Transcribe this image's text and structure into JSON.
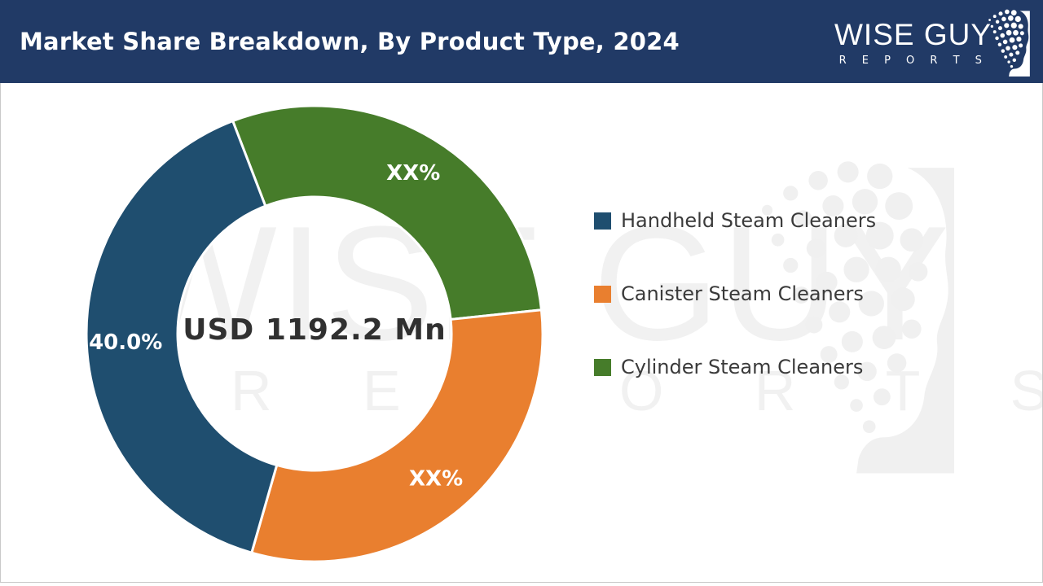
{
  "header": {
    "title": "Market Share Breakdown, By Product Type, 2024",
    "logo": {
      "wordmark": "WISE GUY",
      "subtext": "R E P O R T S"
    }
  },
  "watermark": {
    "wordmark": "WISE GUY",
    "subtext": "R E P O R T S"
  },
  "chart_data": {
    "type": "pie",
    "subtype": "donut",
    "title": "Market Share Breakdown, By Product Type, 2024",
    "center_label": "USD 1192.2 Mn",
    "total_value_mn": 1192.2,
    "legend_position": "right",
    "segments": [
      {
        "name": "Cylinder Steam Cleaners",
        "display_label": "XX%",
        "value_pct_est": 29.2,
        "start_deg": -21,
        "end_deg": 84,
        "color": "#467C2A"
      },
      {
        "name": "Canister Steam Cleaners",
        "display_label": "XX%",
        "value_pct_est": 31.1,
        "start_deg": 84,
        "end_deg": 196,
        "color": "#E97F2F"
      },
      {
        "name": "Handheld Steam Cleaners",
        "display_label": "40.0%",
        "value_pct_est": 39.7,
        "start_deg": 196,
        "end_deg": 339,
        "color": "#1F4E6F"
      }
    ],
    "legend_items": [
      {
        "label": "Handheld Steam Cleaners",
        "color": "#1F4E6F"
      },
      {
        "label": "Canister Steam Cleaners",
        "color": "#E97F2F"
      },
      {
        "label": "Cylinder Steam Cleaners",
        "color": "#467C2A"
      }
    ]
  },
  "colors": {
    "header_bg": "#213A66",
    "blue": "#1F4E6F",
    "orange": "#E97F2F",
    "green": "#467C2A",
    "watermark": "#F1F1F1",
    "border": "#C9C9C9"
  }
}
